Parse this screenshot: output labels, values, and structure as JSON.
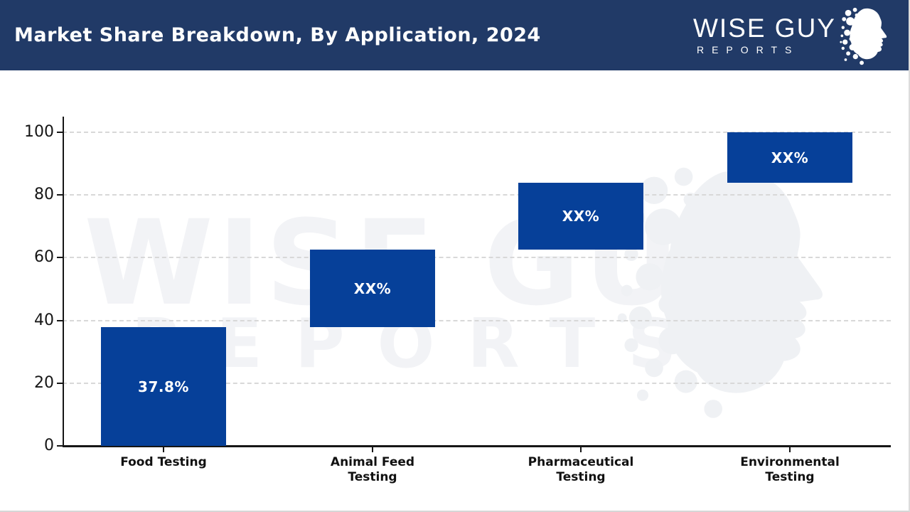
{
  "header": {
    "title": "Market Share Breakdown, By Application, 2024",
    "bg_color": "#213a67",
    "logo": {
      "line1": "WISE GUY",
      "line2": "REPORTS"
    }
  },
  "watermark": {
    "line1": "WISE GUY",
    "line2": "REPORTS"
  },
  "chart_data": {
    "type": "bar",
    "subtype": "waterfall",
    "title": "Market Share Breakdown, By Application, 2024",
    "bars": [
      {
        "category": "Food Testing",
        "category_lines": [
          "Food Testing"
        ],
        "label": "37.8%",
        "start": 0,
        "end": 37.8
      },
      {
        "category": "Animal Feed Testing",
        "category_lines": [
          "Animal Feed",
          "Testing"
        ],
        "label": "XX%",
        "start": 37.8,
        "end": 62.6
      },
      {
        "category": "Pharmaceutical Testing",
        "category_lines": [
          "Pharmaceutical",
          "Testing"
        ],
        "label": "XX%",
        "start": 62.6,
        "end": 83.9
      },
      {
        "category": "Environmental Testing",
        "category_lines": [
          "Environmental",
          "Testing"
        ],
        "label": "XX%",
        "start": 83.9,
        "end": 100
      }
    ],
    "yticks": [
      0,
      20,
      40,
      60,
      80,
      100
    ],
    "ylim": [
      0,
      100
    ],
    "grid": "horizontal dashed",
    "legend": "none",
    "bar_color": "#064099",
    "bar_label_color": "#ffffff"
  }
}
